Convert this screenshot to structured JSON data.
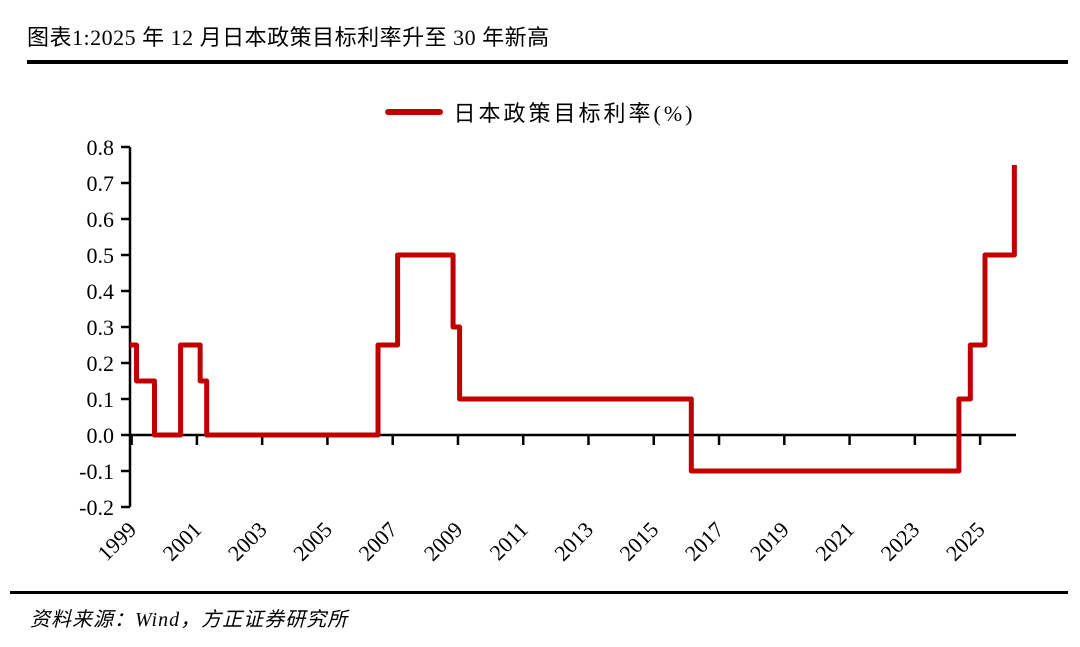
{
  "figure": {
    "title": "图表1:2025 年 12 月日本政策目标利率升至 30 年新高"
  },
  "footer": {
    "source": "资料来源：Wind，方正证券研究所"
  },
  "chart_data": {
    "type": "line",
    "line_style": "step-after",
    "title": "图表1:2025 年 12 月日本政策目标利率升至 30 年新高",
    "legend_position": "top-center",
    "grid": false,
    "xlabel": "",
    "ylabel": "",
    "ylim": [
      -0.2,
      0.8
    ],
    "yticks": [
      0.8,
      0.7,
      0.6,
      0.5,
      0.4,
      0.3,
      0.2,
      0.1,
      0.0,
      -0.1,
      -0.2
    ],
    "ytick_labels": [
      "0.8",
      "0.7",
      "0.6",
      "0.5",
      "0.4",
      "0.3",
      "0.2",
      "0.1",
      "0.0",
      "-0.1",
      "-0.2"
    ],
    "x_domain": [
      1998.95,
      2026.1
    ],
    "xticks": [
      1999,
      2001,
      2003,
      2005,
      2007,
      2009,
      2011,
      2013,
      2015,
      2017,
      2019,
      2021,
      2023,
      2025
    ],
    "xtick_labels": [
      "1999",
      "2001",
      "2003",
      "2005",
      "2007",
      "2009",
      "2011",
      "2013",
      "2015",
      "2017",
      "2019",
      "2021",
      "2023",
      "2025"
    ],
    "axis_color": "#000000",
    "series": [
      {
        "name": "日本政策目标利率(%)",
        "color": "#C00000",
        "points": [
          {
            "x": 1998.95,
            "y": 0.25
          },
          {
            "x": 1999.15,
            "y": 0.15
          },
          {
            "x": 1999.7,
            "y": 0.0
          },
          {
            "x": 2000.5,
            "y": 0.25
          },
          {
            "x": 2001.1,
            "y": 0.15
          },
          {
            "x": 2001.3,
            "y": 0.0
          },
          {
            "x": 2006.55,
            "y": 0.25
          },
          {
            "x": 2007.15,
            "y": 0.5
          },
          {
            "x": 2008.85,
            "y": 0.3
          },
          {
            "x": 2009.05,
            "y": 0.1
          },
          {
            "x": 2016.15,
            "y": -0.1
          },
          {
            "x": 2024.35,
            "y": 0.1
          },
          {
            "x": 2024.7,
            "y": 0.25
          },
          {
            "x": 2025.15,
            "y": 0.5
          },
          {
            "x": 2026.05,
            "y": 0.75
          }
        ]
      }
    ]
  }
}
